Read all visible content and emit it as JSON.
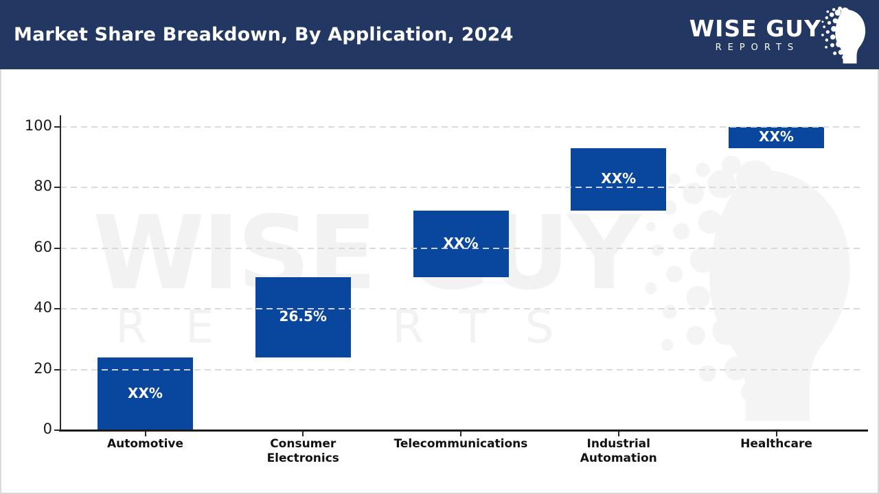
{
  "header": {
    "title": "Market Share Breakdown, By Application, 2024",
    "bg_color": "#223862",
    "logo": {
      "name": "WISE GUY",
      "sub": "REPORTS"
    }
  },
  "watermark": {
    "line1": "WISE GUY",
    "line2": "REPORTS"
  },
  "chart_data": {
    "type": "bar",
    "subtype": "waterfall",
    "title": "Market Share Breakdown, By Application, 2024",
    "categories": [
      "Automotive",
      "Consumer Electronics",
      "Telecommunications",
      "Industrial Automation",
      "Healthcare"
    ],
    "segments": [
      {
        "category": "Automotive",
        "start": 0,
        "end": 24,
        "value": 24,
        "label": "XX%"
      },
      {
        "category": "Consumer Electronics",
        "start": 24,
        "end": 50.5,
        "value": 26.5,
        "label": "26.5%"
      },
      {
        "category": "Telecommunications",
        "start": 50.5,
        "end": 72.5,
        "value": 22,
        "label": "XX%"
      },
      {
        "category": "Industrial Automation",
        "start": 72.5,
        "end": 93,
        "value": 20.5,
        "label": "XX%"
      },
      {
        "category": "Healthcare",
        "start": 93,
        "end": 100,
        "value": 7,
        "label": "XX%"
      }
    ],
    "xlabel": "",
    "ylabel": "",
    "ylim": [
      0,
      100
    ],
    "yticks": [
      0,
      20,
      40,
      60,
      80,
      100
    ],
    "grid": "horizontal-dashed",
    "legend": "none",
    "bar_color": "#09469e",
    "bar_label_color": "#ffffff",
    "gridline_color": "#d8d8d8",
    "axis_color": "#1a1a1a"
  }
}
